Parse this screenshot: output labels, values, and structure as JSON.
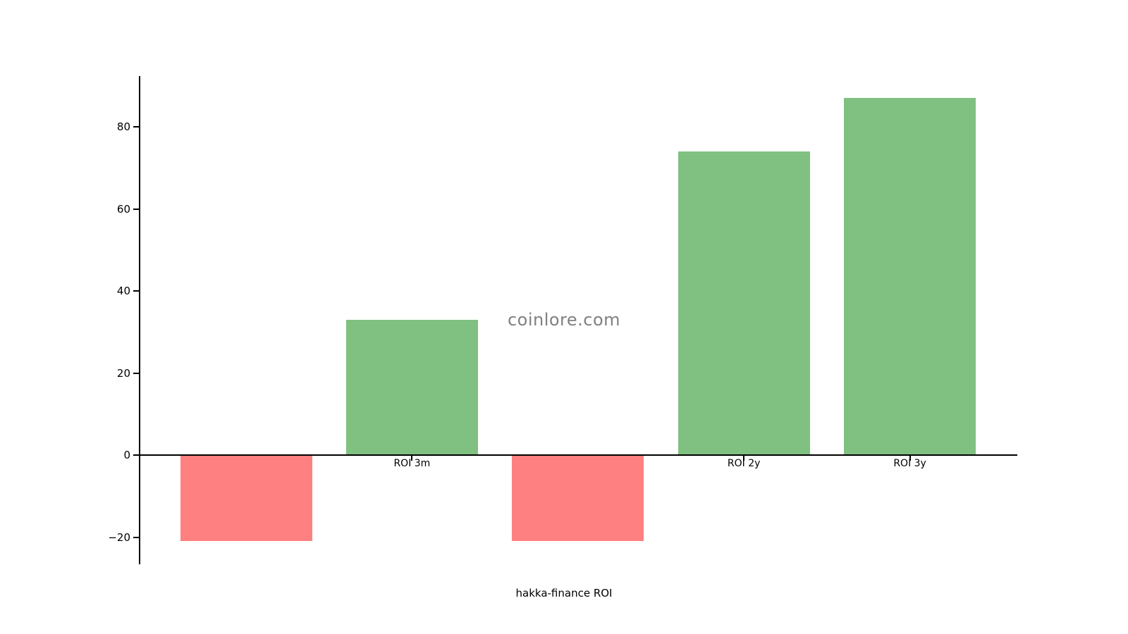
{
  "page": {
    "background_color": "#ffffff"
  },
  "watermark": {
    "text": "coinlore.com",
    "color": "#808080"
  },
  "chart_data": {
    "type": "bar",
    "title": "hakka-finance ROI",
    "xlabel": "",
    "ylabel": "",
    "categories": [
      "",
      "ROI 3m",
      "",
      "ROI 2y",
      "ROI 3y"
    ],
    "values": [
      -21,
      33,
      -21,
      74,
      87
    ],
    "bar_colors": [
      "#ff8080",
      "#80c080",
      "#ff8080",
      "#80c080",
      "#80c080"
    ],
    "positive_color": "#80c080",
    "negative_color": "#ff8080",
    "yticks": [
      80,
      60,
      40,
      20,
      0,
      -20
    ],
    "ytick_labels": [
      "80",
      "60",
      "40",
      "20",
      "0",
      "−20"
    ],
    "ylim": [
      -26.6,
      92.4
    ],
    "grid": false,
    "legend": null,
    "axis_color": "#000000",
    "text_color": "#000000"
  }
}
